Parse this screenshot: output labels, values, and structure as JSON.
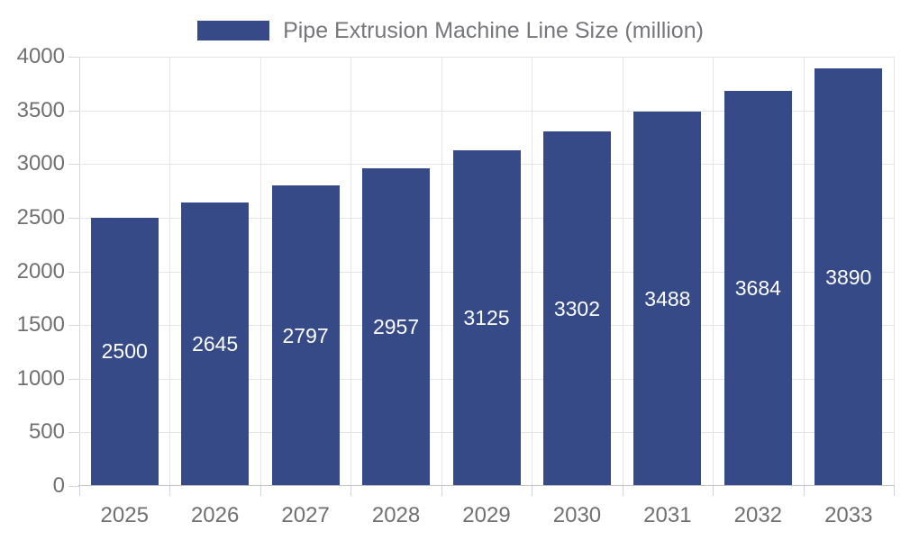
{
  "chart_data": {
    "type": "bar",
    "title": "",
    "series_name": "Pipe Extrusion Machine Line Size (million)",
    "categories": [
      "2025",
      "2026",
      "2027",
      "2028",
      "2029",
      "2030",
      "2031",
      "2032",
      "2033"
    ],
    "values": [
      2500,
      2645,
      2797,
      2957,
      3125,
      3302,
      3488,
      3684,
      3890
    ],
    "xlabel": "",
    "ylabel": "",
    "ylim": [
      0,
      4000
    ],
    "yticks": [
      0,
      500,
      1000,
      1500,
      2000,
      2500,
      3000,
      3500,
      4000
    ],
    "grid": true,
    "legend_position": "top",
    "value_label_position": "inside-center",
    "colors": {
      "bar": "#364a87",
      "value_label": "#ffffff",
      "axis_text": "#707070",
      "legend_text": "#75777c",
      "grid": "#e4e4e4"
    }
  }
}
